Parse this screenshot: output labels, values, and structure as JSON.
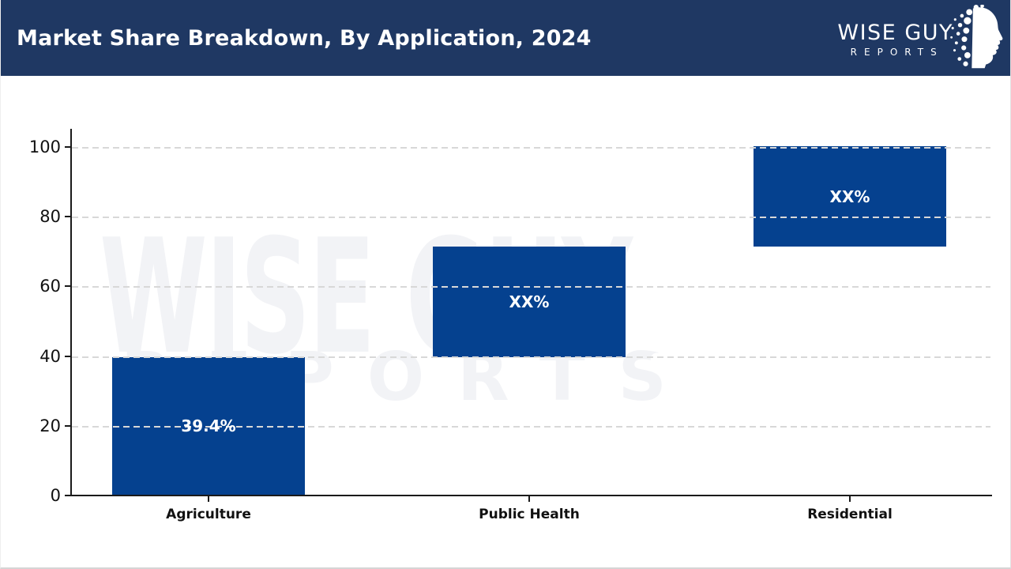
{
  "header": {
    "title": "Market Share Breakdown, By Application, 2024",
    "logo": {
      "name": "WISE GUY",
      "tagline": "REPORTS"
    }
  },
  "watermark": {
    "line1": "WISE GUY",
    "line2": "REPORTS"
  },
  "chart_data": {
    "type": "bar",
    "subtype": "waterfall",
    "title": "Market Share Breakdown, By Application, 2024",
    "categories": [
      "Agriculture",
      "Public Health",
      "Residential"
    ],
    "segments": [
      {
        "category": "Agriculture",
        "start": 0,
        "end": 39.4,
        "label": "39.4%"
      },
      {
        "category": "Public Health",
        "start": 39.4,
        "end": 71.2,
        "label": "XX%"
      },
      {
        "category": "Residential",
        "start": 71.2,
        "end": 100,
        "label": "XX%"
      }
    ],
    "yticks": [
      0,
      20,
      40,
      60,
      80,
      100
    ],
    "ylim": [
      0,
      105
    ],
    "xlabel": "",
    "ylabel": "",
    "grid": true,
    "grid_axis": "y",
    "grid_style": "dashed",
    "grid_on_top_of_bars": true,
    "legend": "none",
    "colors": {
      "bar": "#05418f",
      "bar_label": "#ffffff",
      "header_background": "#1f3863",
      "header_text": "#ffffff",
      "gridline": "#d8d8d8",
      "axis": "#1a1a1a",
      "watermark": "#f2f3f6",
      "background": "#ffffff"
    }
  }
}
